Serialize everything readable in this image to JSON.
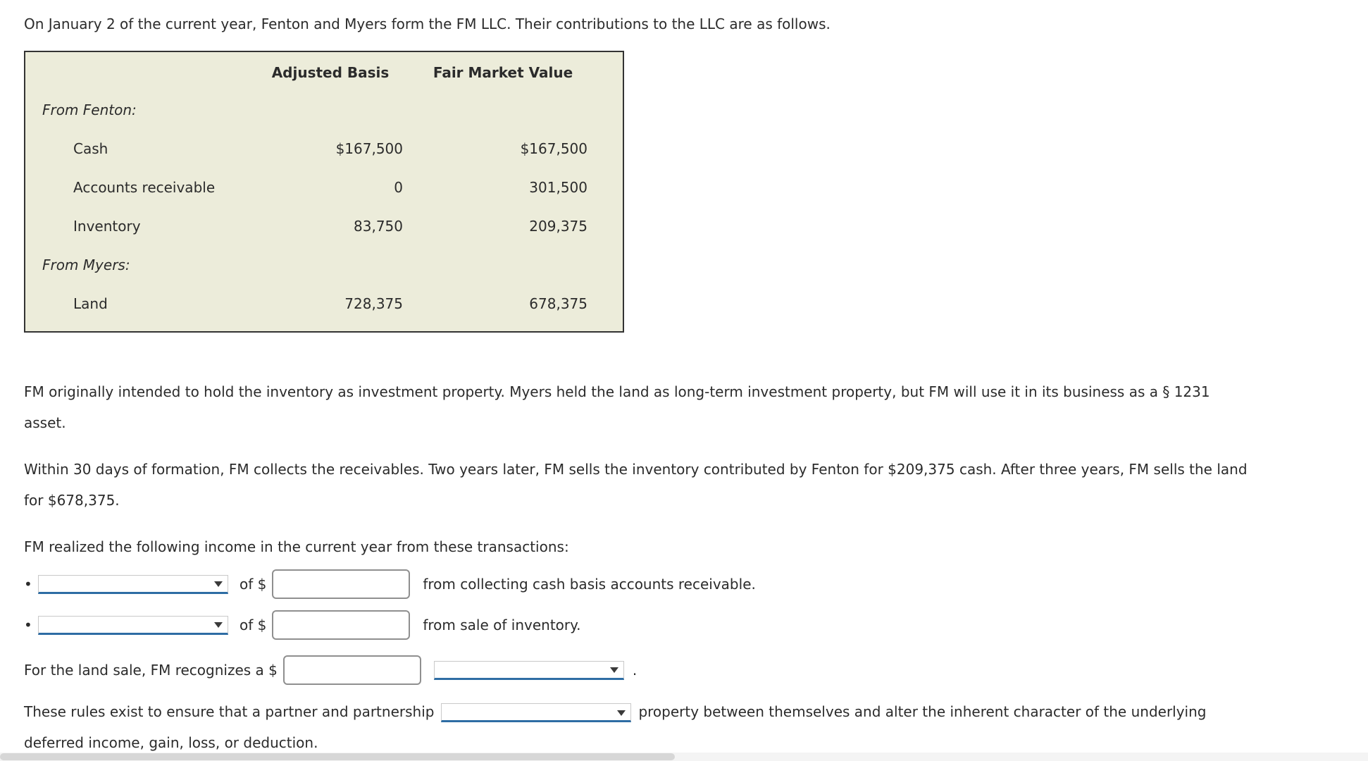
{
  "colors": {
    "table_bg": "#ececda",
    "table_border": "#333333",
    "accent_blue": "#2e6da4",
    "text": "#2b2b2b"
  },
  "intro": "On January 2 of the current year, Fenton and Myers form the FM LLC. Their contributions to the LLC are as follows.",
  "table": {
    "headers": [
      "Adjusted Basis",
      "Fair Market Value"
    ],
    "rows": [
      {
        "label": "From Fenton:",
        "ab": "",
        "fmv": ""
      },
      {
        "label": "Cash",
        "ab": "$167,500",
        "fmv": "$167,500"
      },
      {
        "label": "Accounts receivable",
        "ab": "0",
        "fmv": "301,500"
      },
      {
        "label": "Inventory",
        "ab": "83,750",
        "fmv": "209,375"
      },
      {
        "label": "From Myers:",
        "ab": "",
        "fmv": ""
      },
      {
        "label": "Land",
        "ab": "728,375",
        "fmv": "678,375"
      }
    ]
  },
  "para_inventory": "FM originally intended to hold the inventory as investment property. Myers held the land as long-term investment property, but FM will use it in its business as a § 1231 asset.",
  "para_collections": "Within 30 days of formation, FM collects the receivables. Two years later, FM sells the inventory contributed by Fenton for $209,375 cash. After three years, FM sells the land for $678,375.",
  "para_realized": "FM realized the following income in the current year from these transactions:",
  "answers": [
    {
      "bullet": "•",
      "of": "of $",
      "suffix": "from collecting cash basis accounts receivable."
    },
    {
      "bullet": "•",
      "of": "of $",
      "suffix": "from sale of inventory."
    }
  ],
  "land_sale": {
    "prefix": "For the land sale, FM recognizes a $",
    "period": "."
  },
  "closing": {
    "prefix": "These rules exist to ensure that a partner and partnership",
    "suffix": "property between themselves and alter the inherent character of the underlying deferred income, gain, loss, or deduction."
  },
  "dropdowns": {
    "receivables_type": {
      "value": ""
    },
    "inventory_type": {
      "value": ""
    },
    "land_type": {
      "value": ""
    },
    "rules_action": {
      "value": ""
    }
  },
  "inputs": {
    "receivables_amount": "",
    "inventory_amount": "",
    "land_amount": ""
  }
}
